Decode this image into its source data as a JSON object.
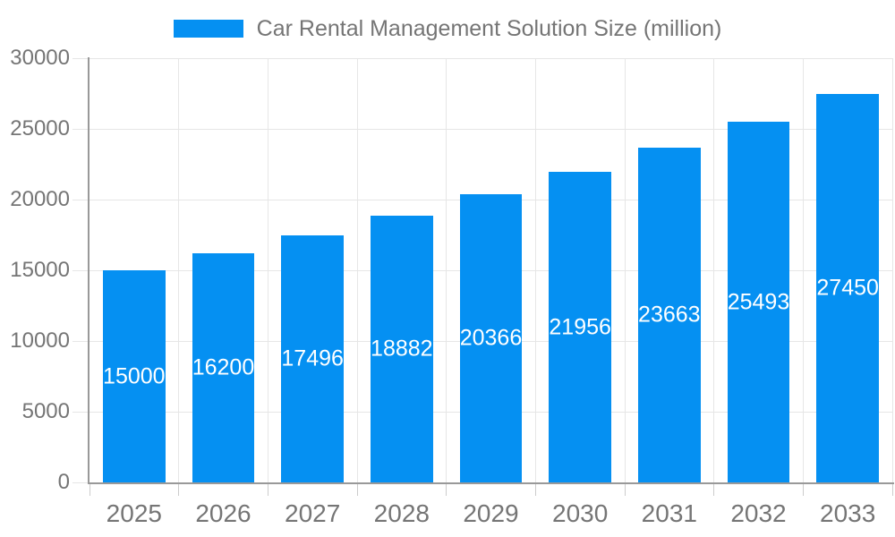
{
  "legend": {
    "items": [
      {
        "label": "Car Rental Management Solution Size (million)",
        "color": "#0590f2"
      }
    ]
  },
  "colors": {
    "bar": "#0590f2",
    "axis_line": "#999999",
    "grid": "#e6e6e6",
    "tick_x": "#cccccc",
    "tick_y": "#e6e6e6",
    "axis_label": "#757575",
    "legend_text": "#757575",
    "bar_label": "#ffffff",
    "background": "#ffffff"
  },
  "chart_data": {
    "type": "bar",
    "title": "Car Rental Management Solution Size (million)",
    "series_name": "Car Rental Management Solution Size (million)",
    "categories": [
      "2025",
      "2026",
      "2027",
      "2028",
      "2029",
      "2030",
      "2031",
      "2032",
      "2033"
    ],
    "values": [
      15000,
      16200,
      17496,
      18882,
      20366,
      21956,
      23663,
      25493,
      27450
    ],
    "xlabel": "",
    "ylabel": "",
    "ylim": [
      0,
      30000
    ],
    "yticks": [
      0,
      5000,
      10000,
      15000,
      20000,
      25000,
      30000
    ],
    "grid": true,
    "legend_position": "top",
    "bar_label_position": "inside-center"
  }
}
